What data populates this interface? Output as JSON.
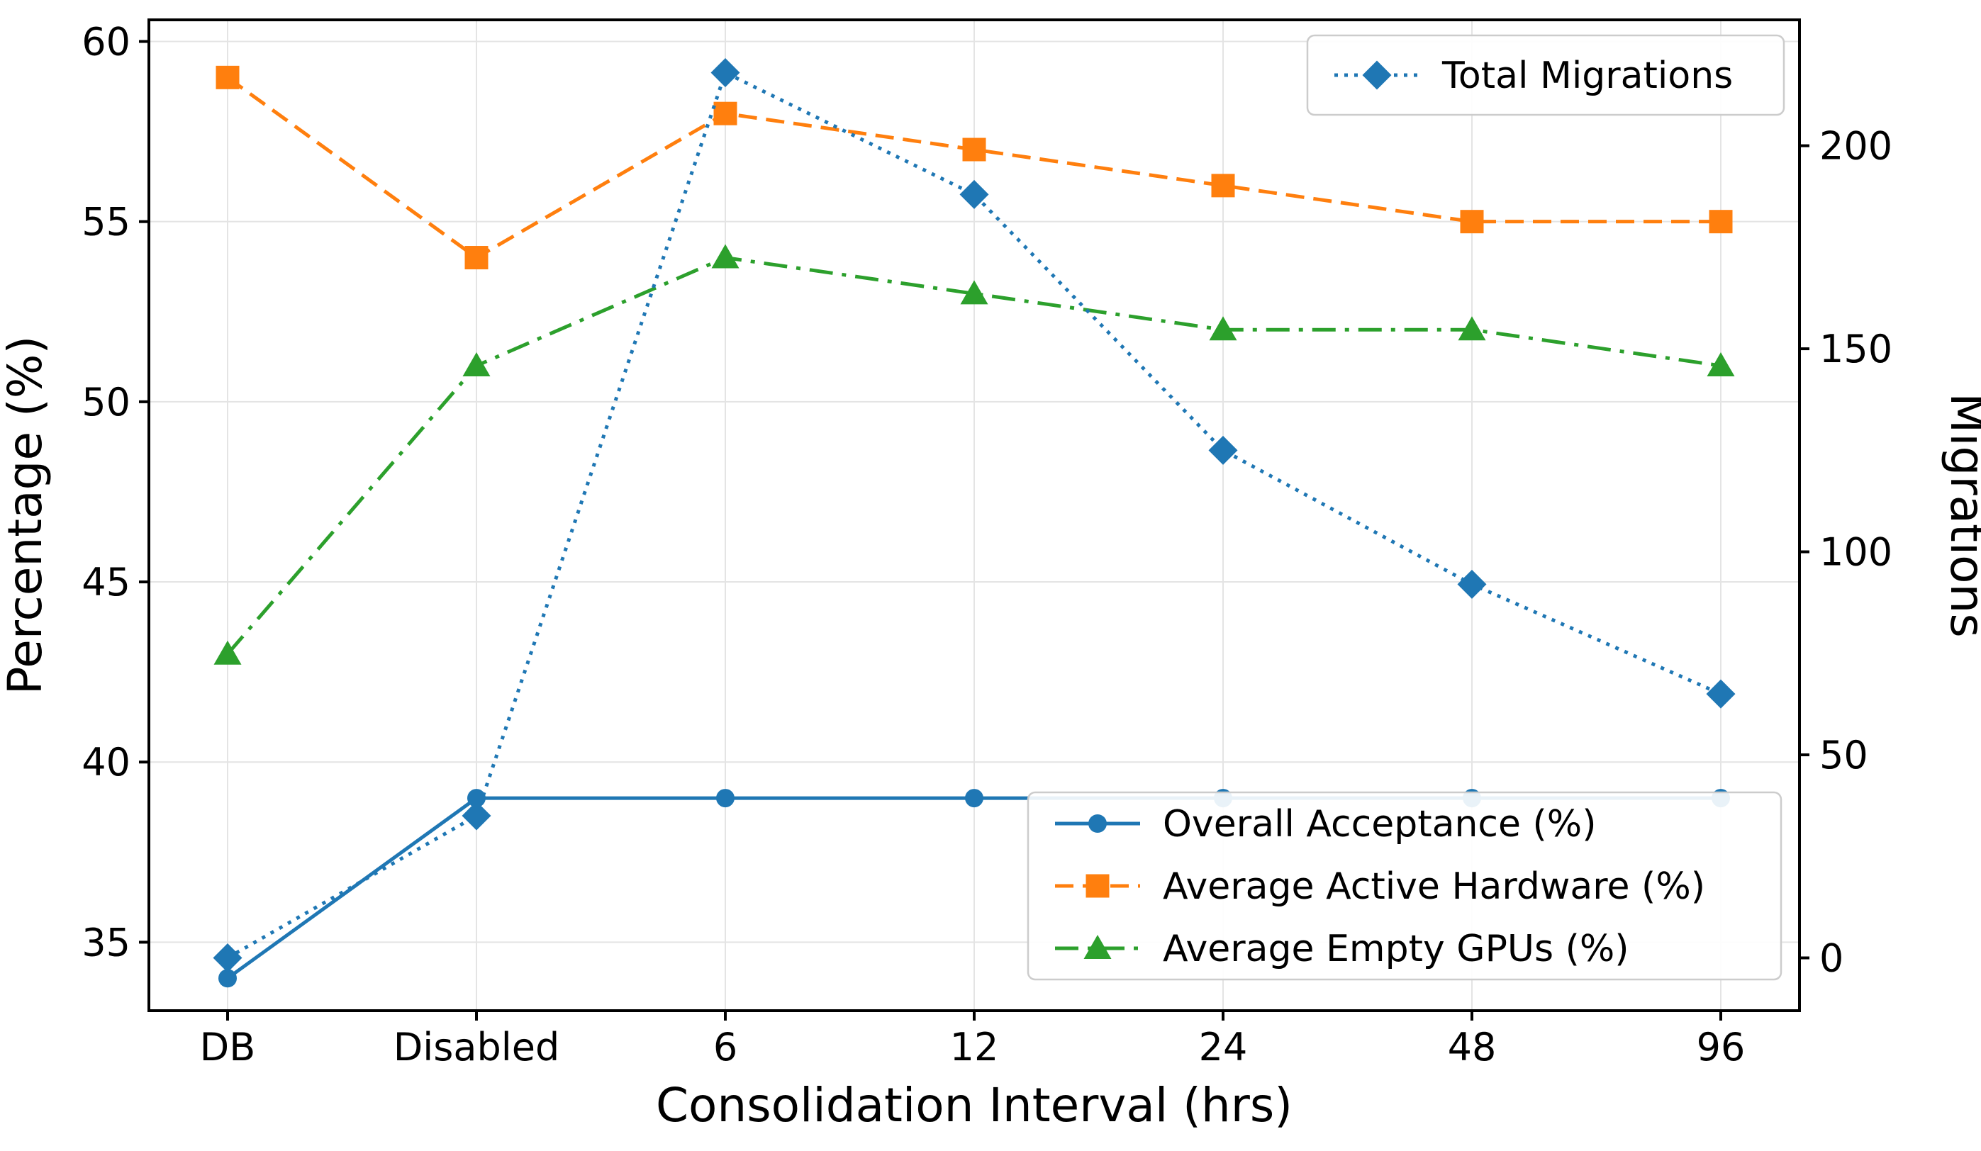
{
  "figure": {
    "background": "#ffffff"
  },
  "chart_data": {
    "type": "line",
    "title": "",
    "xlabel": "Consolidation Interval (hrs)",
    "ylabel_left": "Percentage (%)",
    "ylabel_right": "Migrations",
    "categories": [
      "DB",
      "Disabled",
      "6",
      "12",
      "24",
      "48",
      "96"
    ],
    "left_axis": {
      "label": "Percentage (%)",
      "ticks": [
        35,
        40,
        45,
        50,
        55,
        60
      ],
      "lim": [
        33.1,
        60.6
      ]
    },
    "right_axis": {
      "label": "Migrations",
      "ticks": [
        0,
        50,
        100,
        150,
        200
      ],
      "lim": [
        -13,
        231
      ]
    },
    "grid": true,
    "grid_color": "#e4e4e4",
    "series": [
      {
        "name": "Overall Acceptance (%)",
        "axis": "left",
        "color": "#1f77b4",
        "line": "solid",
        "marker": "circle",
        "values": [
          34,
          39,
          39,
          39,
          39,
          39,
          39
        ]
      },
      {
        "name": "Average Active Hardware (%)",
        "axis": "left",
        "color": "#ff7f0e",
        "line": "dashed",
        "marker": "square",
        "values": [
          59,
          54,
          58,
          57,
          56,
          55,
          55
        ]
      },
      {
        "name": "Average Empty GPUs (%)",
        "axis": "left",
        "color": "#2ca02c",
        "line": "dashdot",
        "marker": "triangle",
        "values": [
          43,
          51,
          54,
          53,
          52,
          52,
          51
        ]
      },
      {
        "name": "Total Migrations",
        "axis": "right",
        "color": "#1f77b4",
        "line": "dotted",
        "marker": "diamond",
        "values": [
          0,
          35,
          218,
          188,
          125,
          92,
          65
        ]
      }
    ],
    "legend_top": {
      "position": "upper-right",
      "entries": [
        "Total Migrations"
      ]
    },
    "legend_bottom": {
      "position": "lower-right",
      "entries": [
        "Overall Acceptance (%)",
        "Average Active Hardware (%)",
        "Average Empty GPUs (%)"
      ]
    }
  }
}
